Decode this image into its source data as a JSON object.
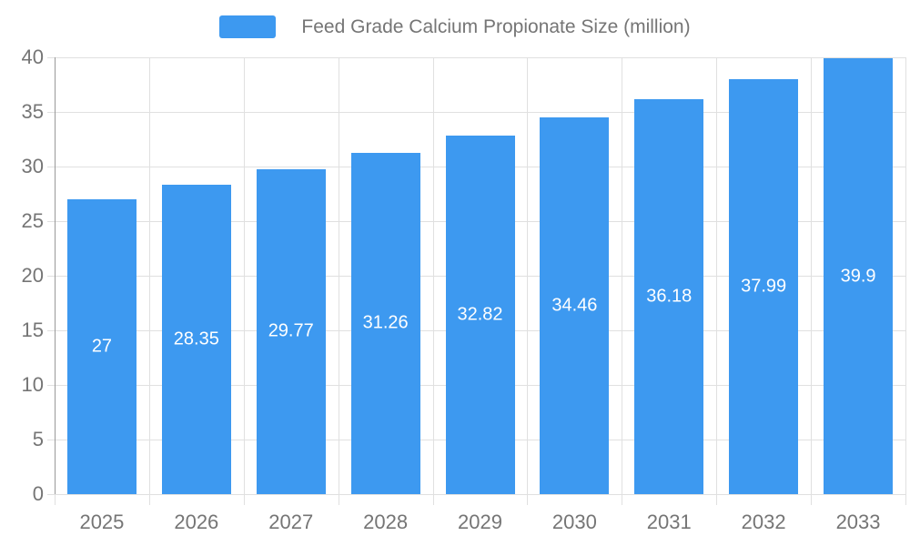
{
  "chart_data": {
    "type": "bar",
    "title": "Feed Grade Calcium Propionate Size (million)",
    "categories": [
      "2025",
      "2026",
      "2027",
      "2028",
      "2029",
      "2030",
      "2031",
      "2032",
      "2033"
    ],
    "values": [
      27,
      28.35,
      29.77,
      31.26,
      32.82,
      34.46,
      36.18,
      37.99,
      39.9
    ],
    "value_labels": [
      "27",
      "28.35",
      "29.77",
      "31.26",
      "32.82",
      "34.46",
      "36.18",
      "37.99",
      "39.9"
    ],
    "xlabel": "",
    "ylabel": "",
    "ylim": [
      0,
      40
    ],
    "ytick_step": 5,
    "ytick_labels": [
      "0",
      "5",
      "10",
      "15",
      "20",
      "25",
      "30",
      "35",
      "40"
    ],
    "grid": true,
    "legend_position": "top-center",
    "colors": {
      "bar": "#3D99F0",
      "grid_line": "#E0E0E0",
      "axis_line": "#999999",
      "tick_text": "#757575",
      "value_label": "#FFFFFF",
      "background": "#FFFFFF"
    }
  }
}
